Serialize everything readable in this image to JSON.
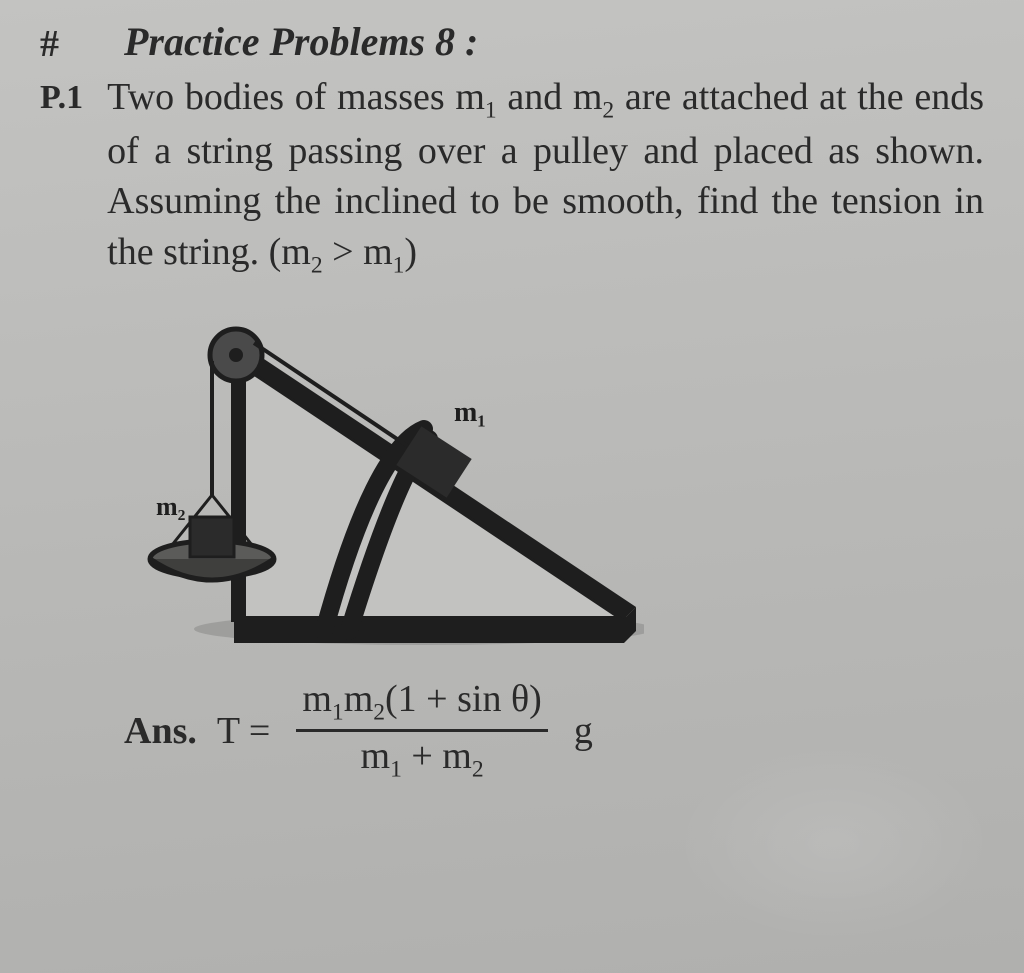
{
  "heading": {
    "marker": "#",
    "title": "Practice Problems 8 :"
  },
  "problem": {
    "number": "P.1",
    "text_html": "Two bodies of masses m<span class=\"sub\">1</span> and m<span class=\"sub\">2</span> are attached at the ends of a string passing over a pulley and placed as shown. Assuming the inclined to be smooth, find the tension in the string. (m<span class=\"sub\">2</span> > m<span class=\"sub\">1</span>)"
  },
  "figure": {
    "m1_label": "m₁",
    "m2_label": "m₂",
    "colors": {
      "stroke": "#1e1e1e",
      "fill_dark": "#2b2b2b",
      "fill_mid": "#6a6a68",
      "fill_light": "#c9c9c7",
      "bg": "transparent"
    },
    "label_fontsize": 28
  },
  "answer": {
    "label": "Ans.",
    "lhs": "T =",
    "numerator_html": "m<span class=\"sub\">1</span>m<span class=\"sub\">2</span>(1 + sin θ)",
    "denominator_html": "m<span class=\"sub\">1</span> + m<span class=\"sub\">2</span>",
    "tail": "g"
  },
  "style": {
    "page_bg": "#bfbfbd",
    "text_color": "#2a2a2a",
    "title_fontsize": 40,
    "body_fontsize": 38,
    "answer_fontsize": 38
  }
}
